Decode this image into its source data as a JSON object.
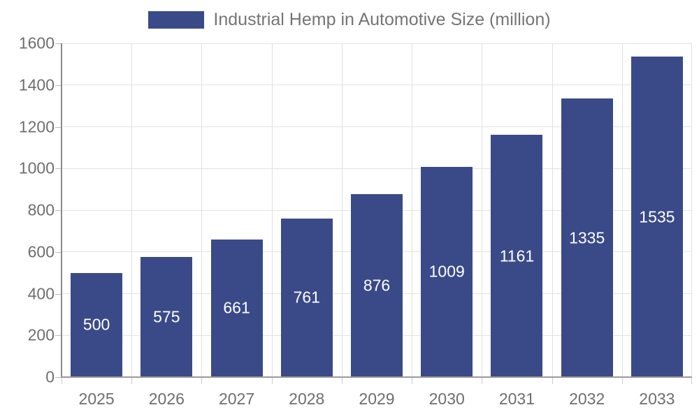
{
  "chart_data": {
    "type": "bar",
    "legend_label": "Industrial Hemp in Automotive Size (million)",
    "categories": [
      "2025",
      "2026",
      "2027",
      "2028",
      "2029",
      "2030",
      "2031",
      "2032",
      "2033"
    ],
    "values": [
      500,
      575,
      661,
      761,
      876,
      1009,
      1161,
      1335,
      1535
    ],
    "ylim": [
      0,
      1600
    ],
    "ytick_step": 200,
    "grid": true,
    "legend_position": "top",
    "value_labels": "inside-center"
  },
  "colors": {
    "bar": "#3A4A88",
    "bar_value_label": "#ffffff",
    "axis_line": "#8a8a8a",
    "grid_line": "#e3e3e3",
    "axis_text": "#6e6e6e",
    "legend_text": "#757575",
    "background": "#ffffff"
  }
}
